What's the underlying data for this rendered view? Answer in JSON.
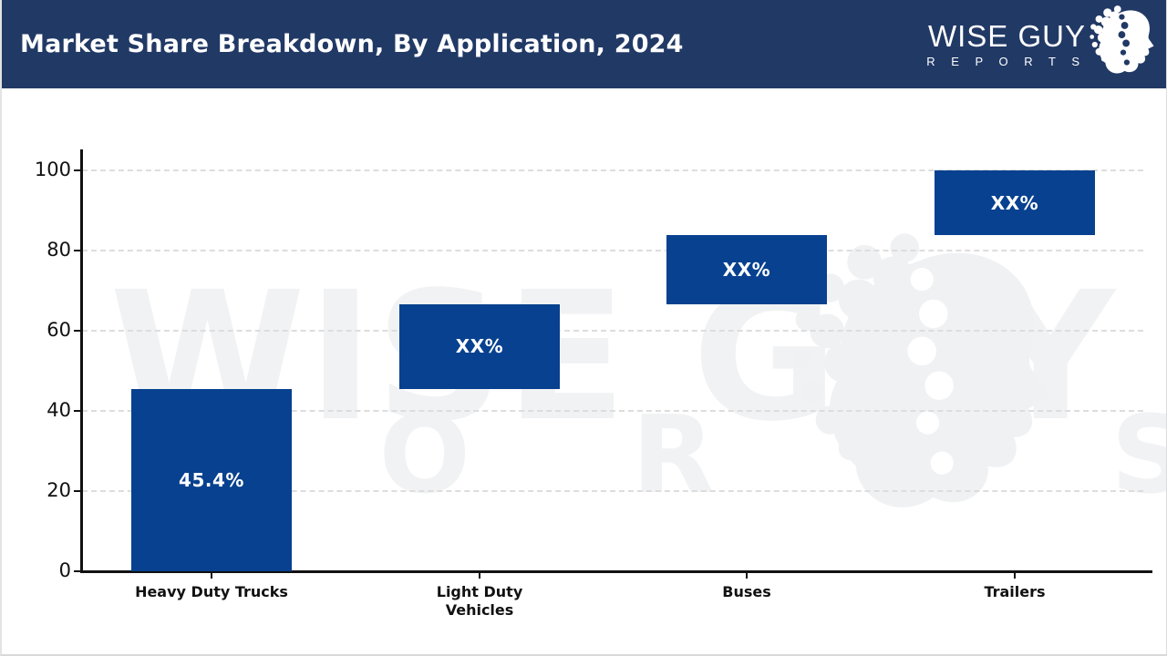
{
  "header": {
    "title": "Market Share Breakdown, By Application, 2024",
    "logo": {
      "line1": "WISE GUY",
      "line2": "R E P O R T S"
    }
  },
  "watermark": {
    "line1": "WISE GUY",
    "line2": "P O R T S"
  },
  "colors": {
    "header_bg": "#213965",
    "bar_blue": "#07418f",
    "grid_gray": "#dddddd",
    "watermark_gray": "#f1f2f4"
  },
  "chart_data": {
    "type": "bar",
    "subtype": "waterfall",
    "title": "Market Share Breakdown, By Application, 2024",
    "categories": [
      "Heavy Duty Trucks",
      "Light Duty Vehicles",
      "Buses",
      "Trailers"
    ],
    "display_labels": [
      "Heavy Duty Trucks",
      "Light Duty\nVehicles",
      "Buses",
      "Trailers"
    ],
    "series": [
      {
        "name": "Market share (%)",
        "segments": [
          {
            "category": "Heavy Duty Trucks",
            "start": 0,
            "end": 45.4,
            "label": "45.4%"
          },
          {
            "category": "Light Duty Vehicles",
            "start": 45.4,
            "end": 66.7,
            "label": "XX%"
          },
          {
            "category": "Buses",
            "start": 66.7,
            "end": 83.8,
            "label": "XX%"
          },
          {
            "category": "Trailers",
            "start": 83.8,
            "end": 100,
            "label": "XX%"
          }
        ]
      }
    ],
    "ylim": [
      0,
      100
    ],
    "yticks": [
      0,
      20,
      40,
      60,
      80,
      100
    ],
    "xlabel": "",
    "ylabel": "",
    "grid": "horizontal-dashed",
    "legend": "none"
  }
}
